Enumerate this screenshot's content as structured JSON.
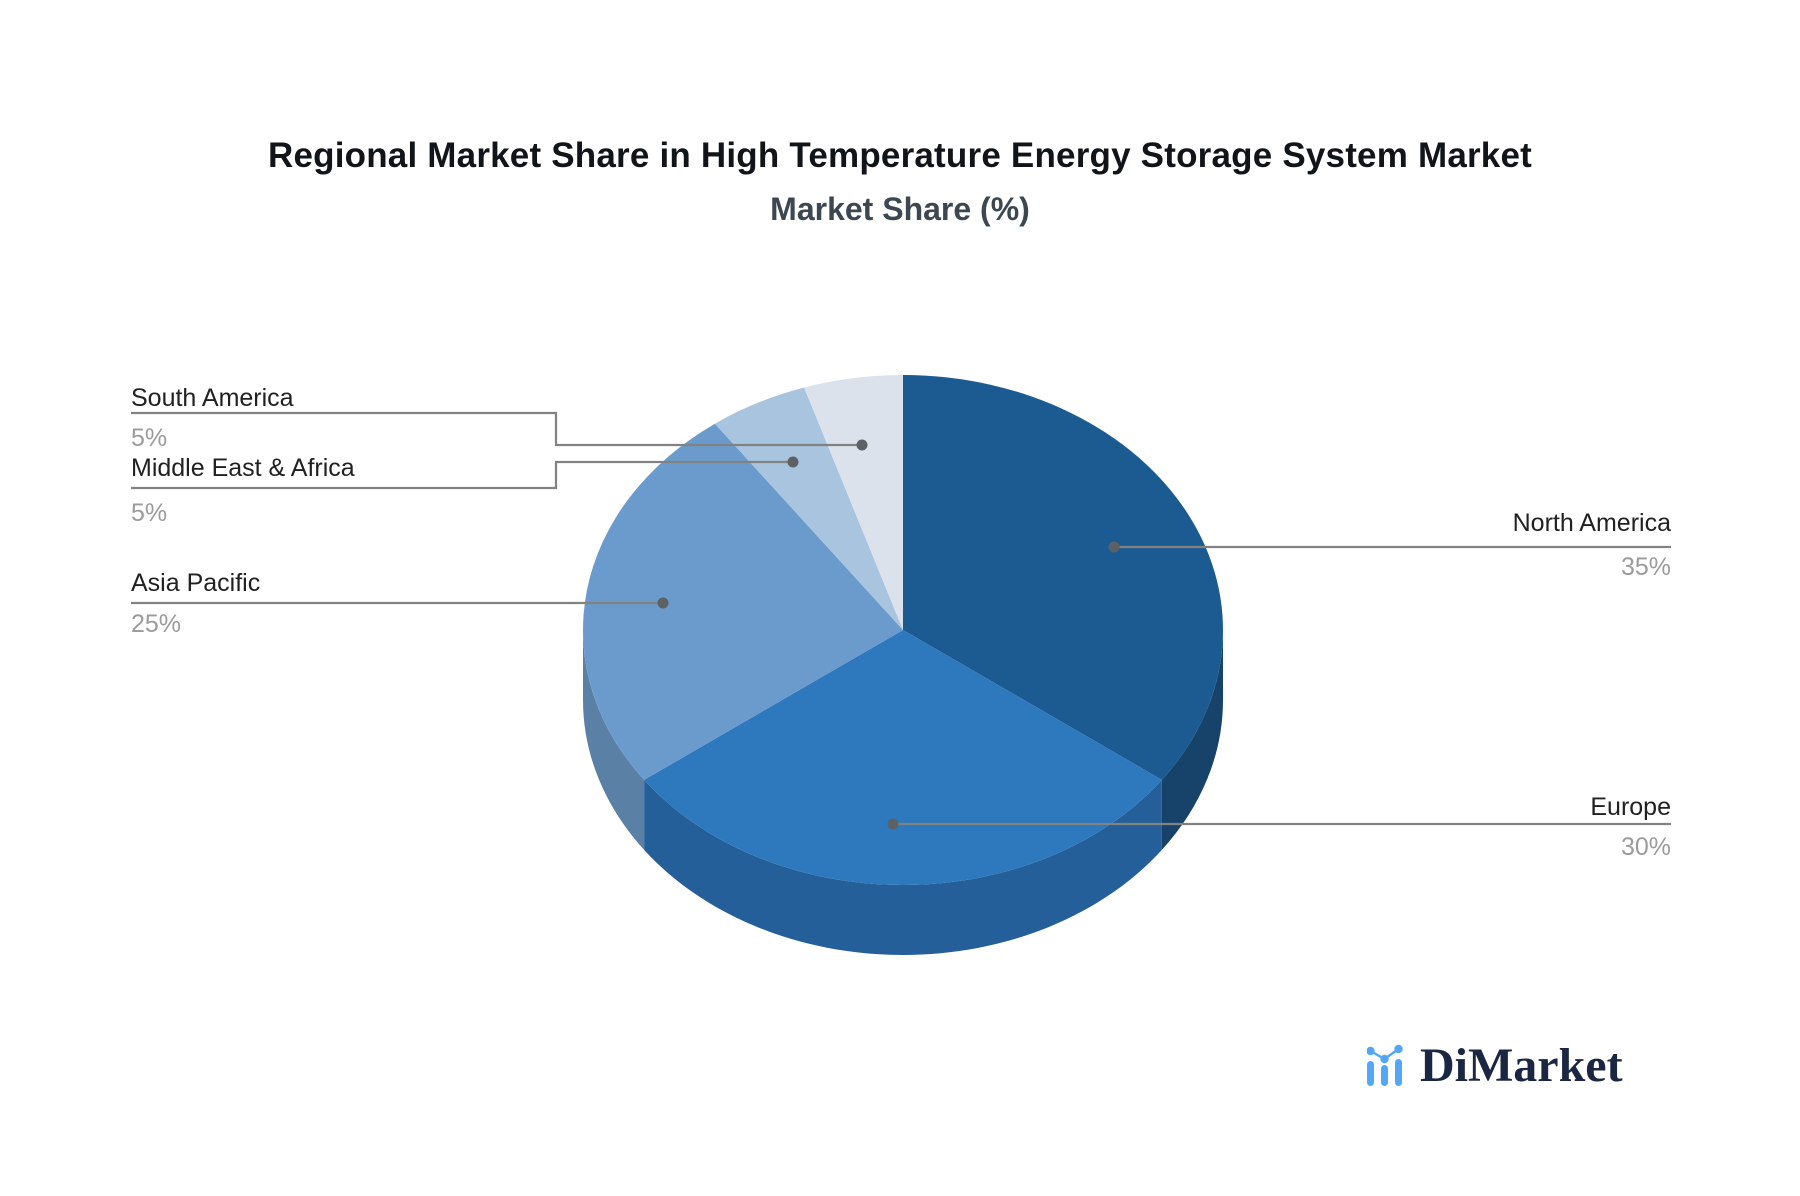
{
  "header": {
    "title": "Regional Market Share in High Temperature Energy Storage System Market",
    "subtitle": "Market Share (%)"
  },
  "chart_data": {
    "type": "pie",
    "style": "3d",
    "title": "Regional Market Share in High Temperature Energy Storage System Market",
    "subtitle": "Market Share (%)",
    "unit": "%",
    "start_angle_deg": 0,
    "direction": "clockwise",
    "slices": [
      {
        "label": "North America",
        "value": 35,
        "pct_label": "35%",
        "color": "#1c5a92",
        "side_color": "#174269",
        "label_side": "right"
      },
      {
        "label": "Europe",
        "value": 30,
        "pct_label": "30%",
        "color": "#2e79bd",
        "side_color": "#245f9a",
        "label_side": "right"
      },
      {
        "label": "Asia Pacific",
        "value": 25,
        "pct_label": "25%",
        "color": "#6b9bcd",
        "side_color": "#5b80a6",
        "label_side": "left"
      },
      {
        "label": "Middle East & Africa",
        "value": 5,
        "pct_label": "5%",
        "color": "#a9c4de",
        "side_color": null,
        "label_side": "left"
      },
      {
        "label": "South America",
        "value": 5,
        "pct_label": "5%",
        "color": "#dbe2ec",
        "side_color": null,
        "label_side": "left"
      }
    ],
    "leader_line_color": "#828282",
    "leader_dot_color": "#5c6166",
    "label_color": "#212121",
    "pct_color": "#9b9b9b",
    "legend_position": "none",
    "grid": false
  },
  "branding": {
    "logo_text": "DiMarket",
    "logo_icon": "bar-line-chart-icon",
    "logo_text_color": "#1b2642",
    "logo_accent_color": "#54a7f7"
  }
}
